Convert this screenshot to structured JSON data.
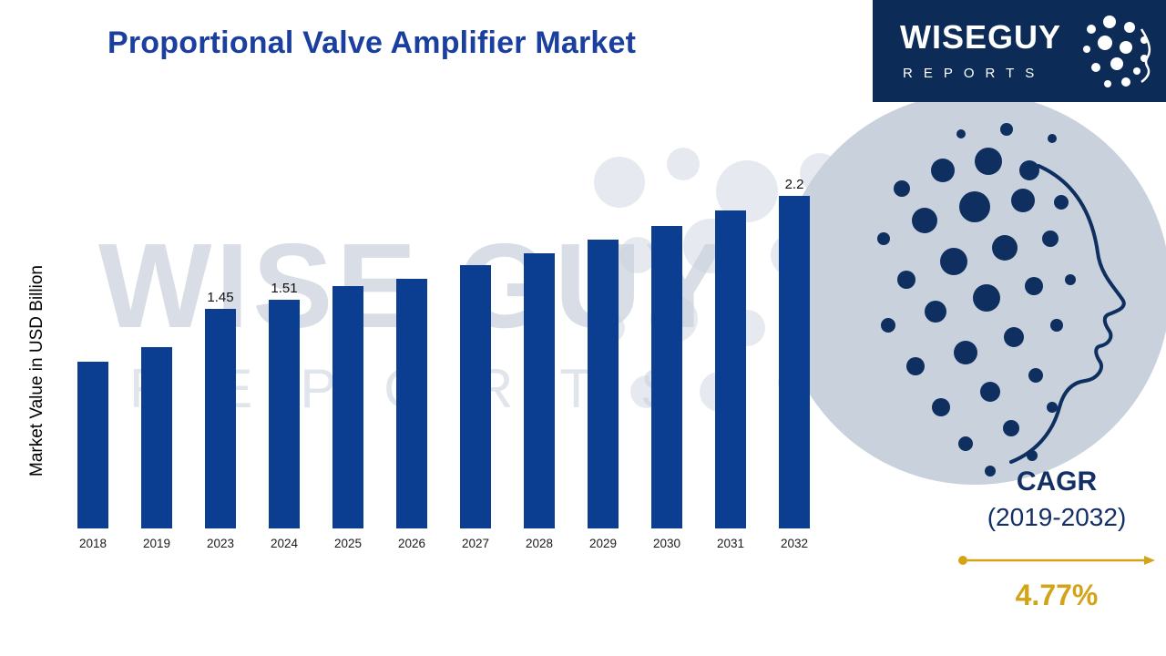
{
  "title": "Proportional Valve Amplifier Market",
  "logo": {
    "name": "WISEGUY",
    "sub": "REPORTS"
  },
  "watermark": {
    "line1": "WISE GUY",
    "line2": "REPORTS"
  },
  "cagr": {
    "label": "CAGR",
    "range": "(2019-2032)",
    "value": "4.77%"
  },
  "colors": {
    "navy": "#0d2b57",
    "bar": "#0b3d91",
    "title_blue": "#1b3f9e",
    "gold": "#d4a418",
    "circle": "#c8d1dc"
  },
  "chart_data": {
    "type": "bar",
    "title": "Proportional Valve Amplifier Market",
    "ylabel": "Market Value in USD Billion",
    "categories": [
      "2018",
      "2019",
      "2023",
      "2024",
      "2025",
      "2026",
      "2027",
      "2028",
      "2029",
      "2030",
      "2031",
      "2032"
    ],
    "values": [
      1.1,
      1.2,
      1.45,
      1.51,
      1.6,
      1.65,
      1.74,
      1.82,
      1.91,
      2.0,
      2.1,
      2.2
    ],
    "bar_labels": [
      "",
      "",
      "1.45",
      "1.51",
      "",
      "",
      "",
      "",
      "",
      "",
      "",
      "2.2"
    ],
    "ylim": [
      0,
      2.4
    ],
    "bar_color": "#0b3d91",
    "grid": false,
    "legend": false
  }
}
